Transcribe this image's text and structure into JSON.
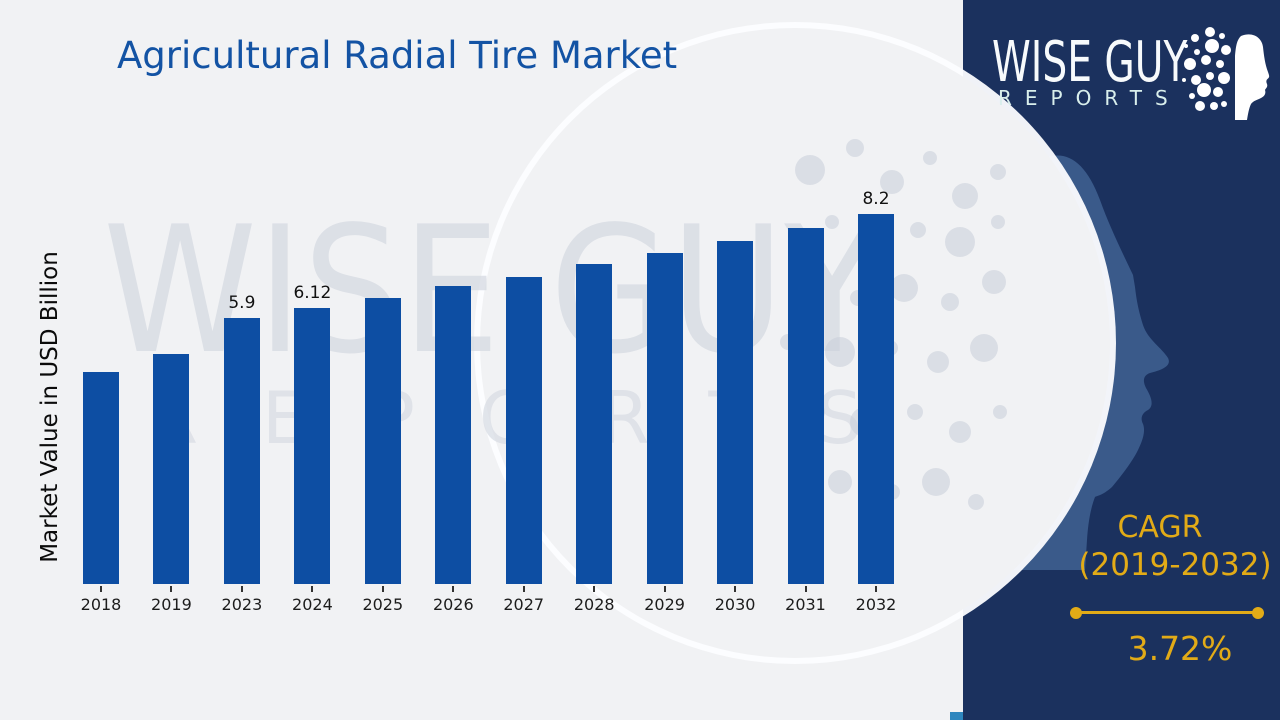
{
  "title": "Agricultural Radial Tire Market",
  "watermark": {
    "line1": "WISE GUY",
    "line2": "REPORTS"
  },
  "logo": {
    "line1": "WISE GUY",
    "line2": "REPORTS"
  },
  "sidebar": {
    "cagr_title": "CAGR",
    "cagr_range": "(2019-2032)",
    "cagr_value": "3.72%",
    "accent_color": "#e2ab17",
    "bg_color": "#1b315e",
    "face_color": "#3a5a8a"
  },
  "colors": {
    "background": "#f1f2f4",
    "title": "#1353a4",
    "watermark": "#d6dae2"
  },
  "chart_data": {
    "type": "bar",
    "title": "Agricultural Radial Tire Market",
    "xlabel": "",
    "ylabel": "Market Value in USD Billion",
    "categories": [
      "2018",
      "2019",
      "2023",
      "2024",
      "2025",
      "2026",
      "2027",
      "2028",
      "2029",
      "2030",
      "2031",
      "2032"
    ],
    "values": [
      4.7,
      5.1,
      5.9,
      6.12,
      6.35,
      6.6,
      6.8,
      7.1,
      7.35,
      7.6,
      7.9,
      8.2
    ],
    "shown_value_labels": [
      {
        "category": "2023",
        "label": "5.9"
      },
      {
        "category": "2024",
        "label": "6.12"
      },
      {
        "category": "2032",
        "label": "8.2"
      }
    ],
    "bar_color": "#0d4ea3",
    "ylim": [
      0,
      8.5
    ],
    "grid": false,
    "legend": null
  }
}
